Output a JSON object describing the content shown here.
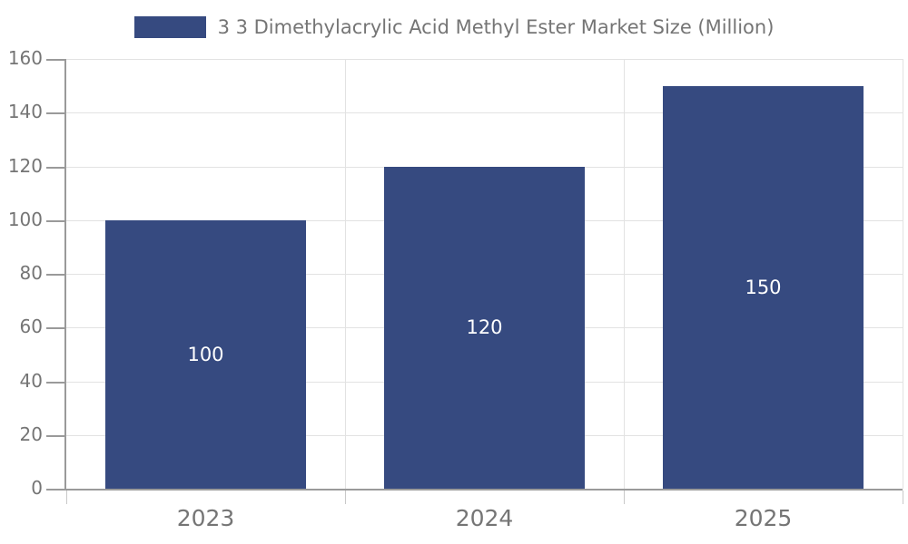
{
  "chart_data": {
    "type": "bar",
    "title": "3 3 Dimethylacrylic Acid Methyl Ester Market Size (Million)",
    "categories": [
      "2023",
      "2024",
      "2025"
    ],
    "values": [
      100,
      120,
      150
    ],
    "series": [
      {
        "name": "3 3 Dimethylacrylic Acid Methyl Ester Market Size (Million)",
        "values": [
          100,
          120,
          150
        ]
      }
    ],
    "xlabel": "",
    "ylabel": "",
    "ylim": [
      0,
      160
    ],
    "ytick_step": 20,
    "yticks": [
      0,
      20,
      40,
      60,
      80,
      100,
      120,
      140,
      160
    ],
    "grid": true,
    "legend_position": "top",
    "bar_color": "#364a80",
    "bar_label_color": "#ffffff",
    "axis_text_color": "#757575"
  }
}
